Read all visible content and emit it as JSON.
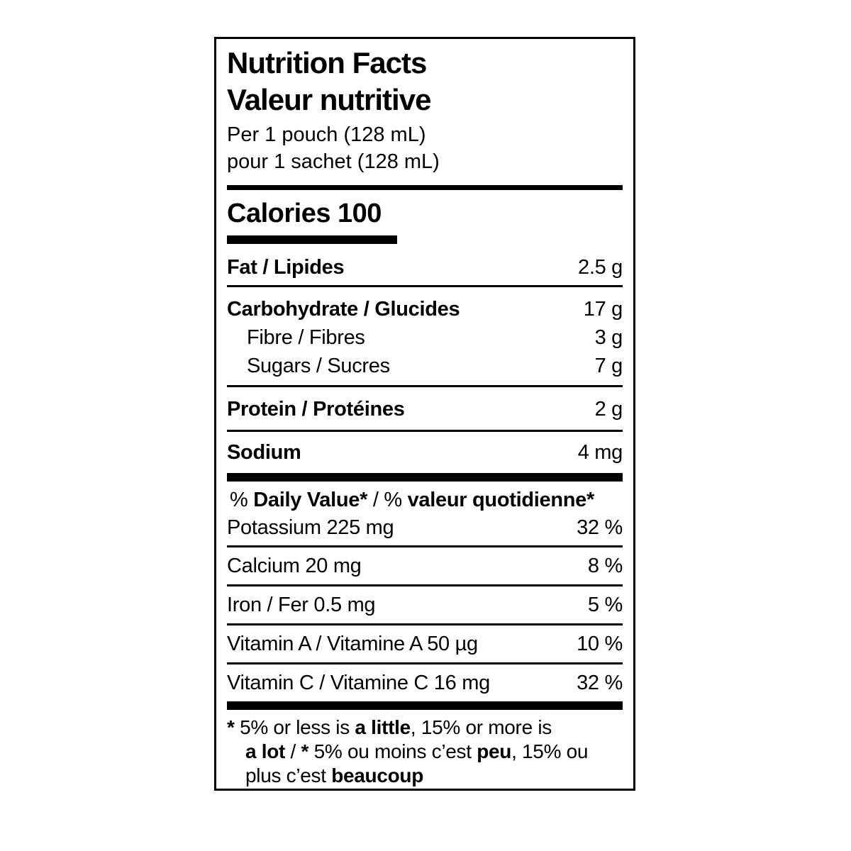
{
  "label": {
    "title_en": "Nutrition Facts",
    "title_fr": "Valeur nutritive",
    "serving_en": "Per 1 pouch (128 mL)",
    "serving_fr": "pour 1 sachet (128 mL)",
    "calories_line": "Calories 100",
    "nutrients": [
      {
        "name": "Fat / Lipides",
        "amount": "2.5 g"
      },
      {
        "name": "Carbohydrate / Glucides",
        "amount": "17 g"
      },
      {
        "name": "Fibre / Fibres",
        "amount": "3 g"
      },
      {
        "name": "Sugars / Sucres",
        "amount": "7 g"
      },
      {
        "name": "Protein / Protéines",
        "amount": "2 g"
      },
      {
        "name": "Sodium",
        "amount": "4 mg"
      }
    ],
    "dv_heading": {
      "prefix": "% ",
      "en_bold": "Daily Value*",
      "middle": " / % ",
      "fr_bold": "valeur quotidienne*"
    },
    "micronutrients": [
      {
        "name": "Potassium 225 mg",
        "percent": "32 %"
      },
      {
        "name": "Calcium 20 mg",
        "percent": "8 %"
      },
      {
        "name": "Iron / Fer 0.5 mg",
        "percent": "5 %"
      },
      {
        "name": "Vitamin A / Vitamine A 50 µg",
        "percent": "10 %"
      },
      {
        "name": "Vitamin C / Vitamine C 16 mg",
        "percent": "32 %"
      }
    ],
    "footnote": {
      "l1_star": "* ",
      "l1_a": "5% or less is ",
      "l1_bold": "a little",
      "l1_b": ", 15% or more is",
      "l2_bold1": "a lot",
      "l2_a": " / ",
      "l2_star": "* ",
      "l2_b": "5% ou moins c’est ",
      "l2_bold2": "peu",
      "l2_c": ", 15% ou",
      "l3_a": "plus c’est ",
      "l3_bold": "beaucoup"
    },
    "colors": {
      "ink": "#000000",
      "background": "#ffffff"
    }
  }
}
